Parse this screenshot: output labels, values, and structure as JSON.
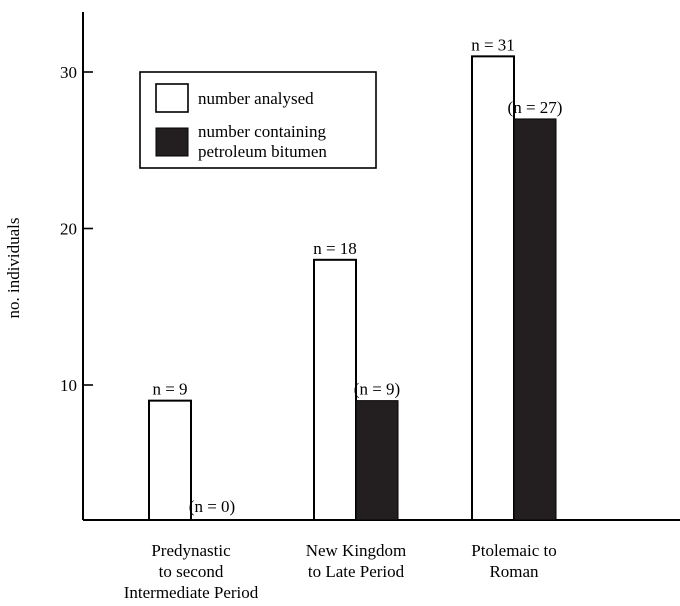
{
  "chart_data": {
    "type": "bar",
    "ylabel": "no. individuals",
    "xlabel": "",
    "ylim": [
      1,
      34
    ],
    "yticks": [
      10,
      20,
      30
    ],
    "categories": [
      [
        "Predynastic",
        "to second",
        "Intermediate Period"
      ],
      [
        "New Kingdom",
        "to Late Period"
      ],
      [
        "Ptolemaic to",
        "Roman"
      ]
    ],
    "series": [
      {
        "name": "number analysed",
        "fill": "#ffffff",
        "stroke": "#000000",
        "values": [
          9,
          18,
          31
        ],
        "labels": [
          "n = 9",
          "n = 18",
          "n = 31"
        ]
      },
      {
        "name": "number containing petroleum bitumen",
        "legend_lines": [
          "number containing",
          "petroleum bitumen"
        ],
        "fill": "#231f20",
        "stroke": "#000000",
        "values": [
          0,
          9,
          27
        ],
        "labels": [
          "(n = 0)",
          "(n = 9)",
          "(n = 27)"
        ]
      }
    ],
    "legend_position": "top-left",
    "grid": false
  }
}
